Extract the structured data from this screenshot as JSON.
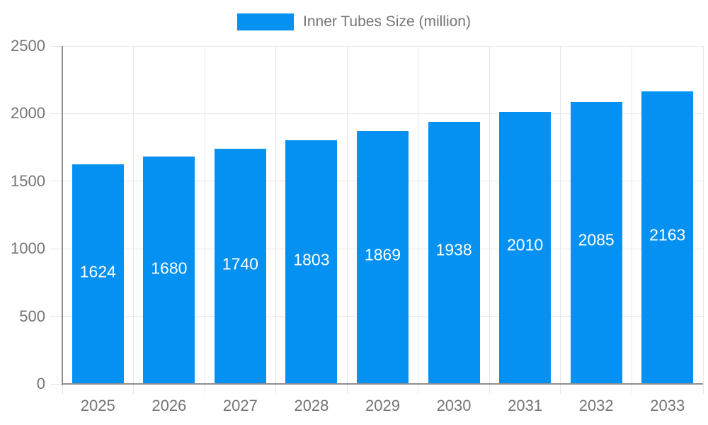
{
  "legend": {
    "swatch_icon": "series-color-swatch"
  },
  "chart_data": {
    "type": "bar",
    "title": "Inner Tubes Size (million)",
    "categories": [
      "2025",
      "2026",
      "2027",
      "2028",
      "2029",
      "2030",
      "2031",
      "2032",
      "2033"
    ],
    "values": [
      1624,
      1680,
      1740,
      1803,
      1869,
      1938,
      2010,
      2085,
      2163
    ],
    "yticks": [
      0,
      500,
      1000,
      1500,
      2000,
      2500
    ],
    "ylim": [
      0,
      2500
    ],
    "xlabel": "",
    "ylabel": "",
    "legend_position": "top",
    "grid": true,
    "bar_color": "#0591f2",
    "value_label_color": "#ffffff",
    "axis_text_color": "#757575",
    "grid_color": "#e6e6e6",
    "axis_line_color": "#8f8f8f"
  }
}
